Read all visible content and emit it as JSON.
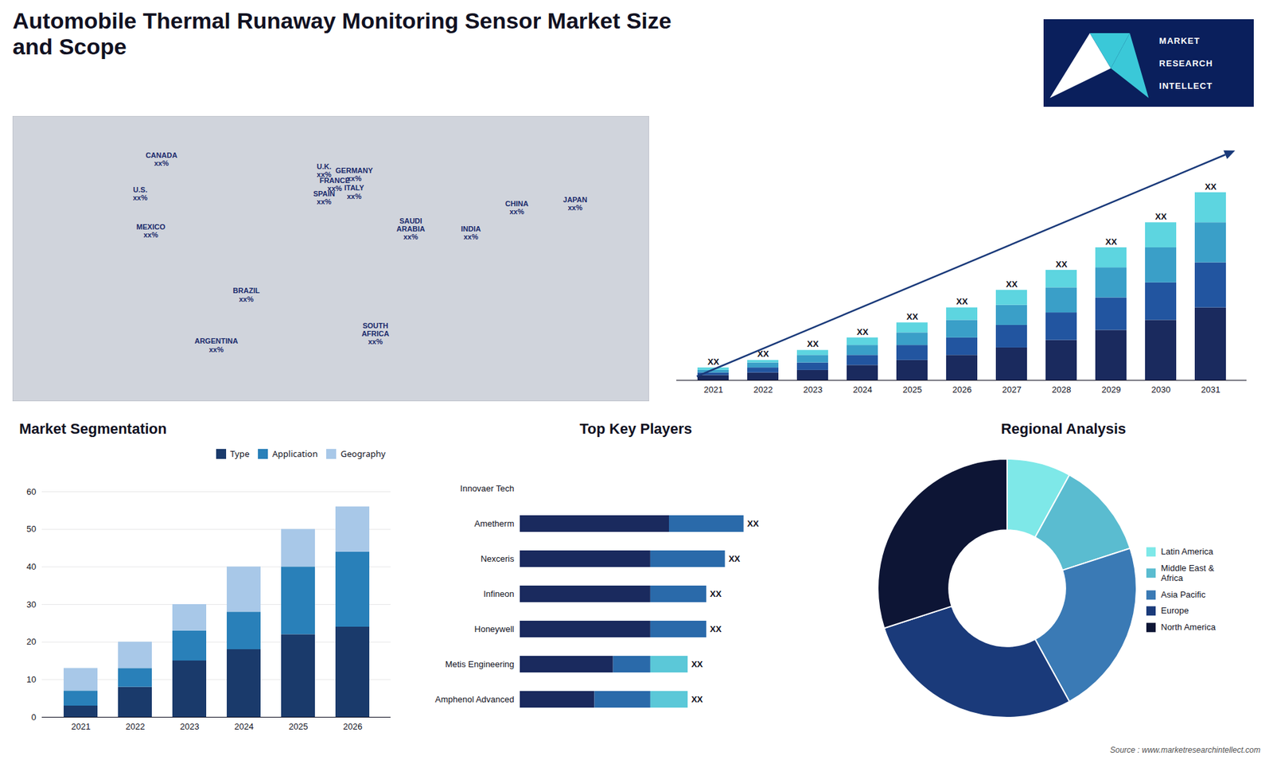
{
  "title": "Automobile Thermal Runaway Monitoring Sensor Market Size\nand Scope",
  "caption": "Source : www.marketresearchintellect.com",
  "annotations": [
    "MARKET",
    "RESEARCH",
    "INTELLECT"
  ],
  "chart_data": [
    {
      "type": "map",
      "color": "#d0d4dc",
      "xlim": [
        -180,
        180
      ],
      "ylim": [
        -65,
        82
      ],
      "tick_labels": false,
      "annotations": [
        {
          "text": "CANADA\nxx%",
          "x": -96,
          "y": 60,
          "color": "#1a2a6b"
        },
        {
          "text": "U.S.\nxx%",
          "x": -108,
          "y": 42,
          "color": "#1a2a6b"
        },
        {
          "text": "MEXICO\nxx%",
          "x": -102,
          "y": 23,
          "color": "#1a2a6b"
        },
        {
          "text": "BRAZIL\nxx%",
          "x": -48,
          "y": -10,
          "color": "#1a2a6b"
        },
        {
          "text": "ARGENTINA\nxx%",
          "x": -65,
          "y": -36,
          "color": "#1a2a6b"
        },
        {
          "text": "U.K.\nxx%",
          "x": -4,
          "y": 54,
          "color": "#1a2a6b"
        },
        {
          "text": "FRANCE\nxx%",
          "x": 2,
          "y": 47,
          "color": "#1a2a6b"
        },
        {
          "text": "SPAIN\nxx%",
          "x": -4,
          "y": 40,
          "color": "#1a2a6b"
        },
        {
          "text": "GERMANY\nxx%",
          "x": 13,
          "y": 52,
          "color": "#1a2a6b"
        },
        {
          "text": "ITALY\nxx%",
          "x": 13,
          "y": 43,
          "color": "#1a2a6b"
        },
        {
          "text": "SAUDI\nARABIA\nxx%",
          "x": 45,
          "y": 24,
          "color": "#1a2a6b"
        },
        {
          "text": "SOUTH\nAFRICA\nxx%",
          "x": 25,
          "y": -30,
          "color": "#1a2a6b"
        },
        {
          "text": "CHINA\nxx%",
          "x": 105,
          "y": 35,
          "color": "#1a2a6b"
        },
        {
          "text": "INDIA\nxx%",
          "x": 79,
          "y": 22,
          "color": "#1a2a6b"
        },
        {
          "text": "JAPAN\nxx%",
          "x": 138,
          "y": 37,
          "color": "#1a2a6b"
        }
      ]
    },
    {
      "type": "bar",
      "stacked": true,
      "categories": [
        "2021",
        "2022",
        "2023",
        "2024",
        "2025",
        "2026",
        "2027",
        "2028",
        "2029",
        "2030",
        "2031"
      ],
      "series": [
        {
          "color": "#1a2a5e",
          "values": [
            2,
            3,
            4,
            6,
            8,
            10,
            13,
            16,
            20,
            24,
            29
          ]
        },
        {
          "color": "#2255a0",
          "values": [
            1,
            2,
            3,
            4,
            6,
            7,
            9,
            11,
            13,
            15,
            18
          ]
        },
        {
          "color": "#3a9fc8",
          "values": [
            1,
            2,
            3,
            4,
            5,
            7,
            8,
            10,
            12,
            14,
            16
          ]
        },
        {
          "color": "#5dd5e0",
          "values": [
            1,
            1,
            2,
            3,
            4,
            5,
            6,
            7,
            8,
            10,
            12
          ]
        }
      ],
      "ylim": [
        0,
        97.5
      ],
      "tick_labels": "x",
      "grid": false,
      "annotations": [
        "XX",
        "XX",
        "XX",
        "XX",
        "XX",
        "XX",
        "XX",
        "XX",
        "XX",
        "XX",
        "XX"
      ]
    },
    {
      "type": "bar",
      "title": "Market Segmentation",
      "stacked": true,
      "categories": [
        "2021",
        "2022",
        "2023",
        "2024",
        "2025",
        "2026"
      ],
      "series": [
        {
          "name": "Type",
          "color": "#1a3a6b",
          "values": [
            3,
            8,
            15,
            18,
            22,
            24
          ]
        },
        {
          "name": "Application",
          "color": "#2980b9",
          "values": [
            4,
            5,
            8,
            10,
            18,
            20
          ]
        },
        {
          "name": "Geography",
          "color": "#a8c8e8",
          "values": [
            6,
            7,
            7,
            12,
            10,
            12
          ]
        }
      ],
      "ylim": [
        0,
        60
      ],
      "yticks": [
        0,
        10,
        20,
        30,
        40,
        50,
        60
      ],
      "grid": true,
      "legend": "top"
    },
    {
      "type": "bar",
      "title": "Top Key Players",
      "orientation": "horizontal",
      "stacked": true,
      "categories": [
        "Innovaer Tech",
        "Ametherm",
        "Nexceris",
        "Infineon",
        "Honeywell",
        "Metis Engineering",
        "Amphenol Advanced"
      ],
      "series": [
        {
          "color": "#1a2a5e",
          "values": [
            0,
            8,
            7,
            7,
            7,
            5,
            4
          ]
        },
        {
          "color": "#2a6aaa",
          "values": [
            0,
            4,
            4,
            3,
            3,
            2,
            3
          ]
        },
        {
          "color": "#5bc8d8",
          "values": [
            0,
            0,
            0,
            0,
            0,
            2,
            2
          ]
        }
      ],
      "xlim": [
        0,
        16
      ],
      "tick_labels": "y",
      "grid": false,
      "annotations": [
        null,
        "XX",
        "XX",
        "XX",
        "XX",
        "XX",
        "XX"
      ]
    },
    {
      "type": "pie",
      "title": "Regional Analysis",
      "categories": [
        "Latin America",
        "Middle East &\nAfrica",
        "Asia Pacific",
        "Europe",
        "North America"
      ],
      "values": [
        8,
        12,
        22,
        28,
        30
      ],
      "colors": [
        "#7ee8e8",
        "#5abcd0",
        "#3a7ab5",
        "#1a3a7a",
        "#0d1535"
      ],
      "legend": "right"
    }
  ]
}
